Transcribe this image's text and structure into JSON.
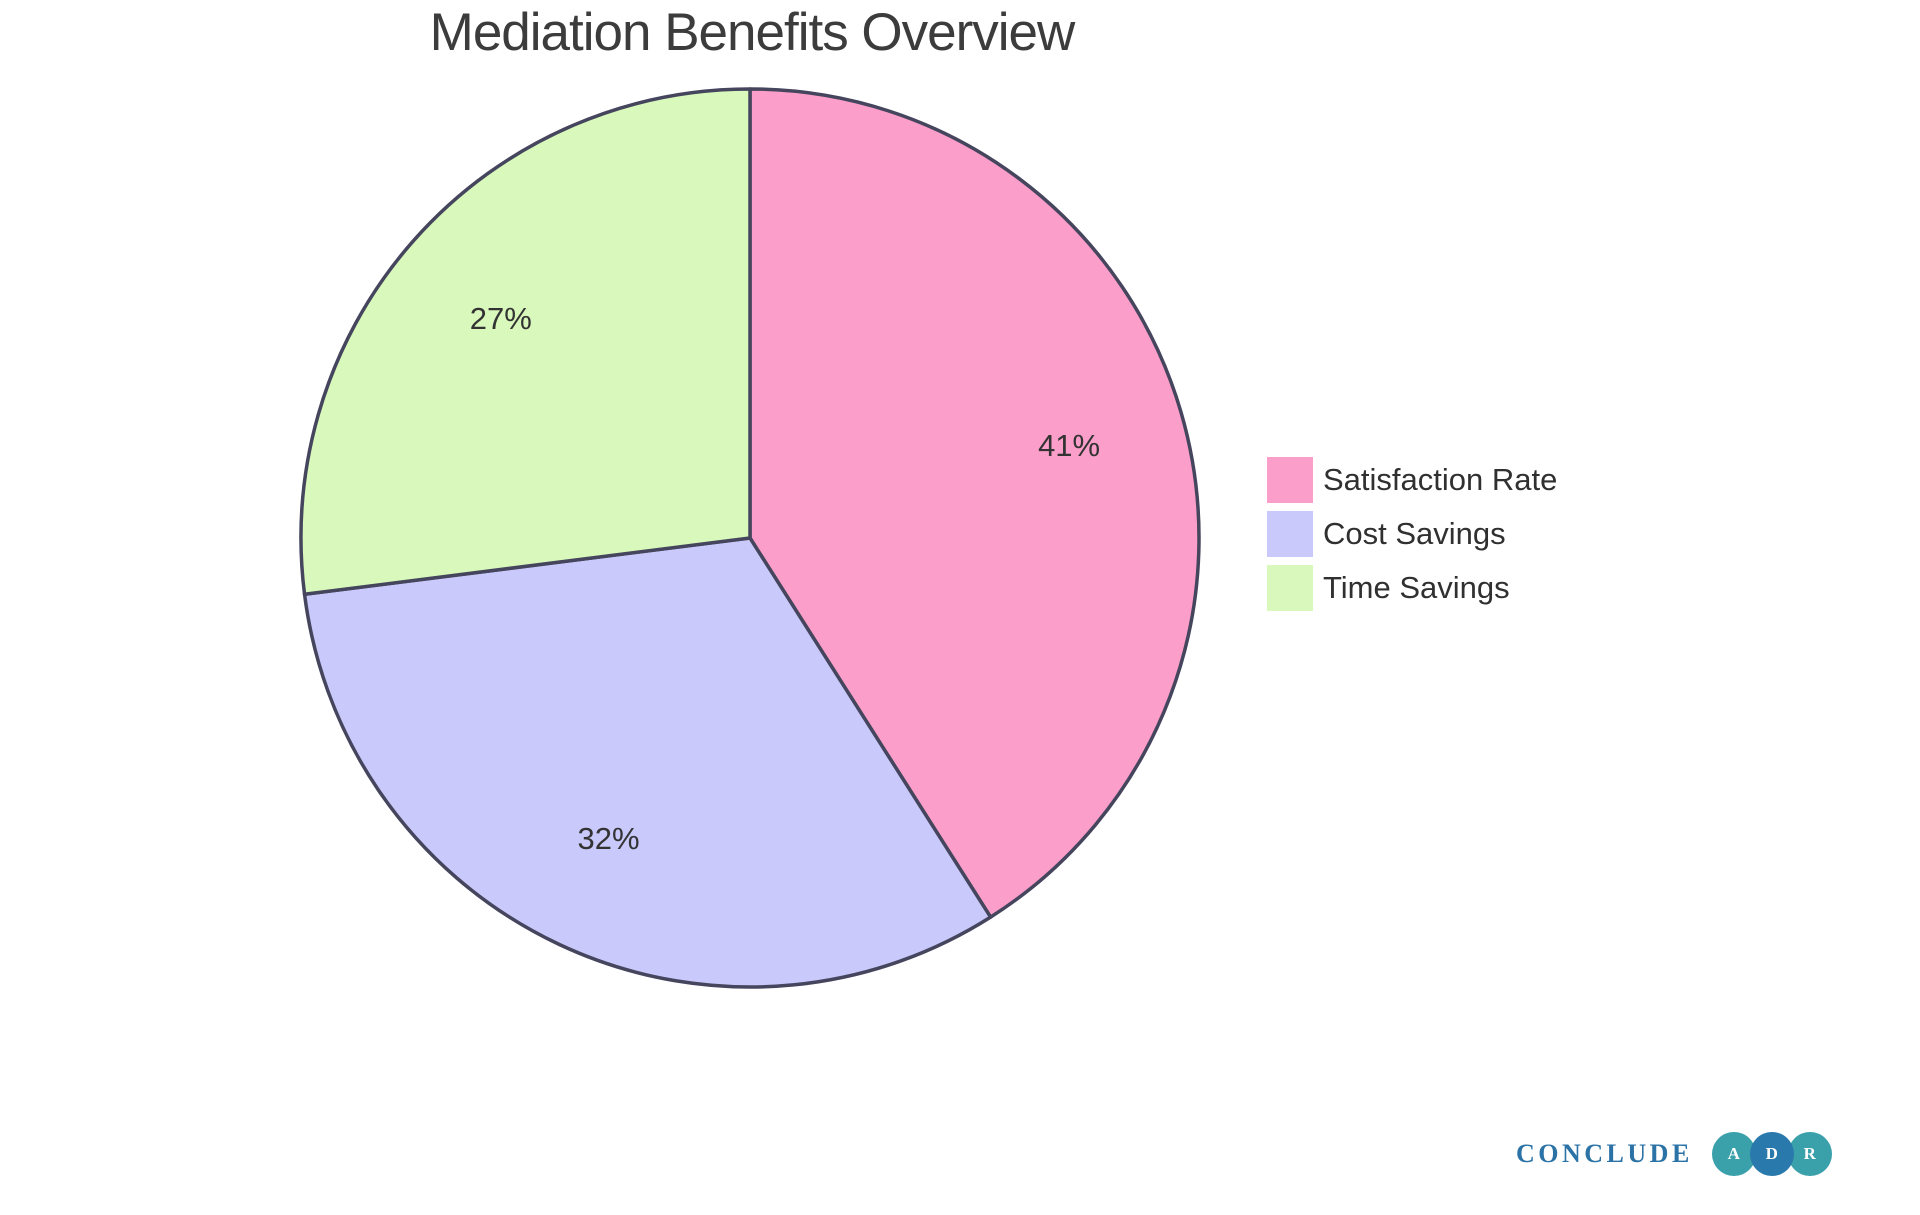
{
  "page": {
    "background": "#ffffff"
  },
  "chart_data": {
    "type": "pie",
    "title": "Mediation Benefits Overview",
    "categories": [
      "Satisfaction Rate",
      "Cost Savings",
      "Time Savings"
    ],
    "values": [
      41,
      32,
      27
    ],
    "slice_labels": [
      "41%",
      "32%",
      "27%"
    ],
    "colors": [
      "#FB9EC9",
      "#C9CAFB",
      "#D9F9BC"
    ],
    "slice_border_color": "#45455E",
    "slice_border_width": 3.5,
    "slice_label_color": "#333333",
    "title_color": "#3C3C3C",
    "legend_text_color": "#303030",
    "start_angle": "12-oclock",
    "direction": "clockwise",
    "legend_position": "right",
    "grid": false
  },
  "logo": {
    "wordmark": "CONCLUDE",
    "wordmark_color": "#2B73A6",
    "badges": [
      {
        "letter": "A",
        "color": "#3AA0AA"
      },
      {
        "letter": "D",
        "color": "#2A79AD"
      },
      {
        "letter": "R",
        "color": "#3AA0AA"
      }
    ]
  }
}
